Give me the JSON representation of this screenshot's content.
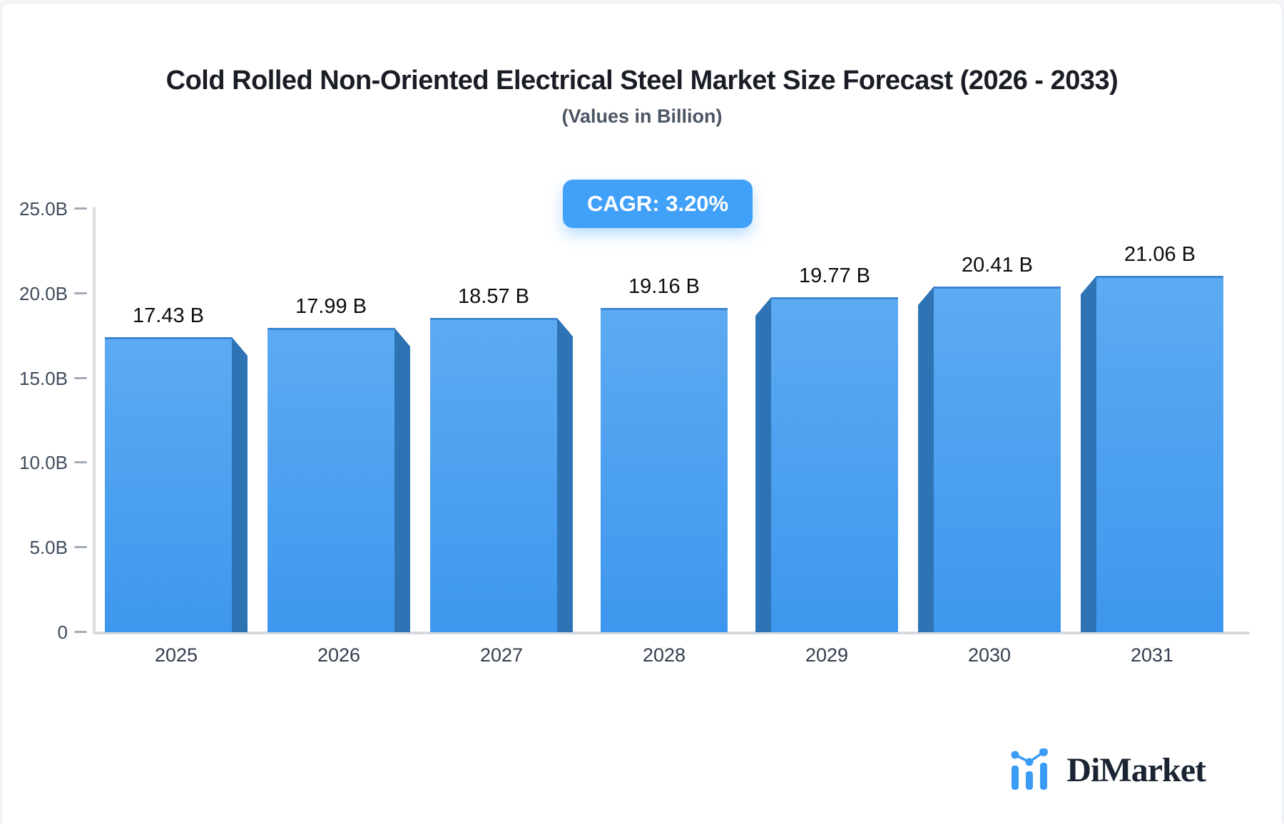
{
  "header": {
    "title": "Cold Rolled Non-Oriented Electrical Steel Market Size Forecast (2026 - 2033)",
    "subtitle": "(Values in Billion)"
  },
  "badge": {
    "label": "CAGR: 3.20%"
  },
  "watermark": {
    "brand": "DiMarket",
    "icon": "bar-chart-icon"
  },
  "colors": {
    "bar_face_top": "#5caaf2",
    "bar_face_bottom": "#3e97ee",
    "bar_face_edge": "#3e86d0",
    "bar_side": "#2e74b5",
    "badge_bg": "#41a0f7",
    "axis_line": "#d6d9de",
    "tick_text": "#3e4a5c",
    "logo_blue": "#3b9cf6",
    "logo_text": "#1a2433"
  },
  "chart_data": {
    "type": "bar",
    "title": "Cold Rolled Non-Oriented Electrical Steel Market Size Forecast (2026 - 2033)",
    "subtitle": "(Values in Billion)",
    "cagr": "3.20%",
    "categories": [
      "2025",
      "2026",
      "2027",
      "2028",
      "2029",
      "2030",
      "2031"
    ],
    "values": [
      17.43,
      17.99,
      18.57,
      19.16,
      19.77,
      20.41,
      21.06
    ],
    "value_labels": [
      "17.43 B",
      "17.99 B",
      "18.57 B",
      "19.16 B",
      "19.77 B",
      "20.41 B",
      "21.06 B"
    ],
    "xlabel": "",
    "ylabel": "",
    "ylim": [
      0,
      25
    ],
    "yticks": [
      {
        "value": 0,
        "label": "0"
      },
      {
        "value": 5,
        "label": "5.0B"
      },
      {
        "value": 10,
        "label": "10.0B"
      },
      {
        "value": 15,
        "label": "15.0B"
      },
      {
        "value": 20,
        "label": "20.0B"
      },
      {
        "value": 25,
        "label": "25.0B"
      }
    ],
    "grid": false,
    "legend": false
  }
}
